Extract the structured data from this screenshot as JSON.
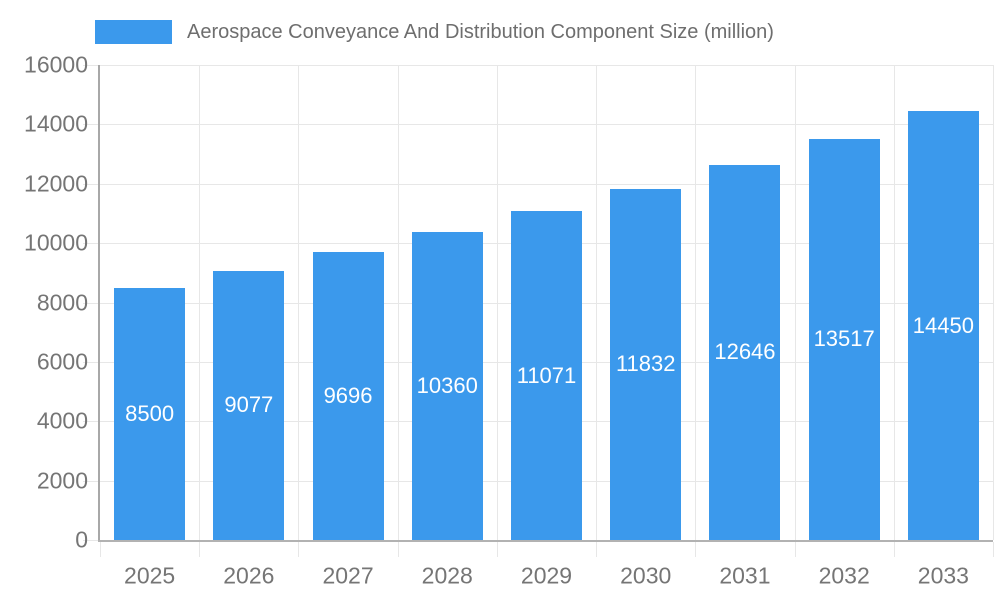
{
  "chart_data": {
    "type": "bar",
    "title": "Aerospace Conveyance And Distribution Component Size (million)",
    "legend": {
      "position": "top",
      "entries": [
        {
          "label": "Aerospace Conveyance And Distribution Component Size (million)",
          "color": "#3b99ec"
        }
      ]
    },
    "categories": [
      "2025",
      "2026",
      "2027",
      "2028",
      "2029",
      "2030",
      "2031",
      "2032",
      "2033"
    ],
    "values": [
      8500,
      9077,
      9696,
      10360,
      11071,
      11832,
      12646,
      13517,
      14450
    ],
    "bar_labels": [
      "8500",
      "9077",
      "9696",
      "10360",
      "11071",
      "11832",
      "12646",
      "13517",
      "14450"
    ],
    "xlabel": "",
    "ylabel": "",
    "ylim": [
      0,
      16000
    ],
    "ytick_step": 2000,
    "ytick_labels": [
      "0",
      "2000",
      "4000",
      "6000",
      "8000",
      "10000",
      "12000",
      "14000",
      "16000"
    ],
    "grid": "on",
    "bar_color": "#3b99ec",
    "bar_label_color": "#ffffff",
    "axis_text_color": "#757575",
    "legend_text_color": "#6e6e6e"
  }
}
